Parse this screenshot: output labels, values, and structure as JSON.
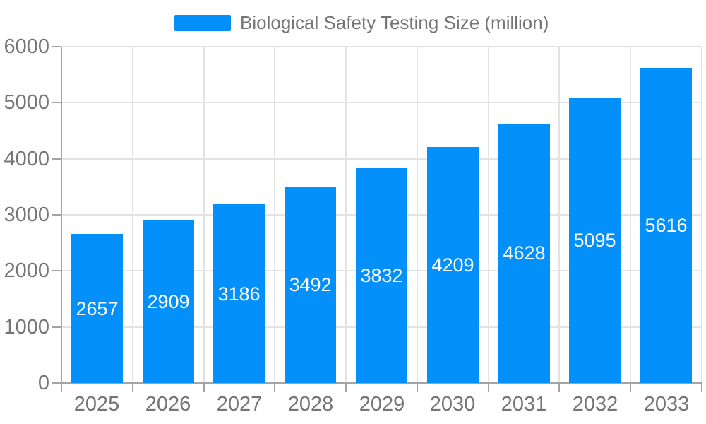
{
  "chart_data": {
    "type": "bar",
    "title": "Biological Safety Testing Size (million)",
    "categories": [
      "2025",
      "2026",
      "2027",
      "2028",
      "2029",
      "2030",
      "2031",
      "2032",
      "2033"
    ],
    "values": [
      2657,
      2909,
      3186,
      3492,
      3832,
      4209,
      4628,
      5095,
      5616
    ],
    "xlabel": "",
    "ylabel": "",
    "ylim": [
      0,
      6000
    ],
    "ytick_step": 1000,
    "yticks": [
      0,
      1000,
      2000,
      3000,
      4000,
      5000,
      6000
    ],
    "grid": true,
    "legend_position": "top-center",
    "data_labels": "inside-center",
    "colors": {
      "bar": "#0490fb",
      "bar_label": "#ffffff",
      "axis_text": "#757575",
      "legend_text": "#757575",
      "grid_line": "#e3e3e6",
      "axis_line": "#a3a3a8",
      "background": "#ffffff"
    }
  }
}
